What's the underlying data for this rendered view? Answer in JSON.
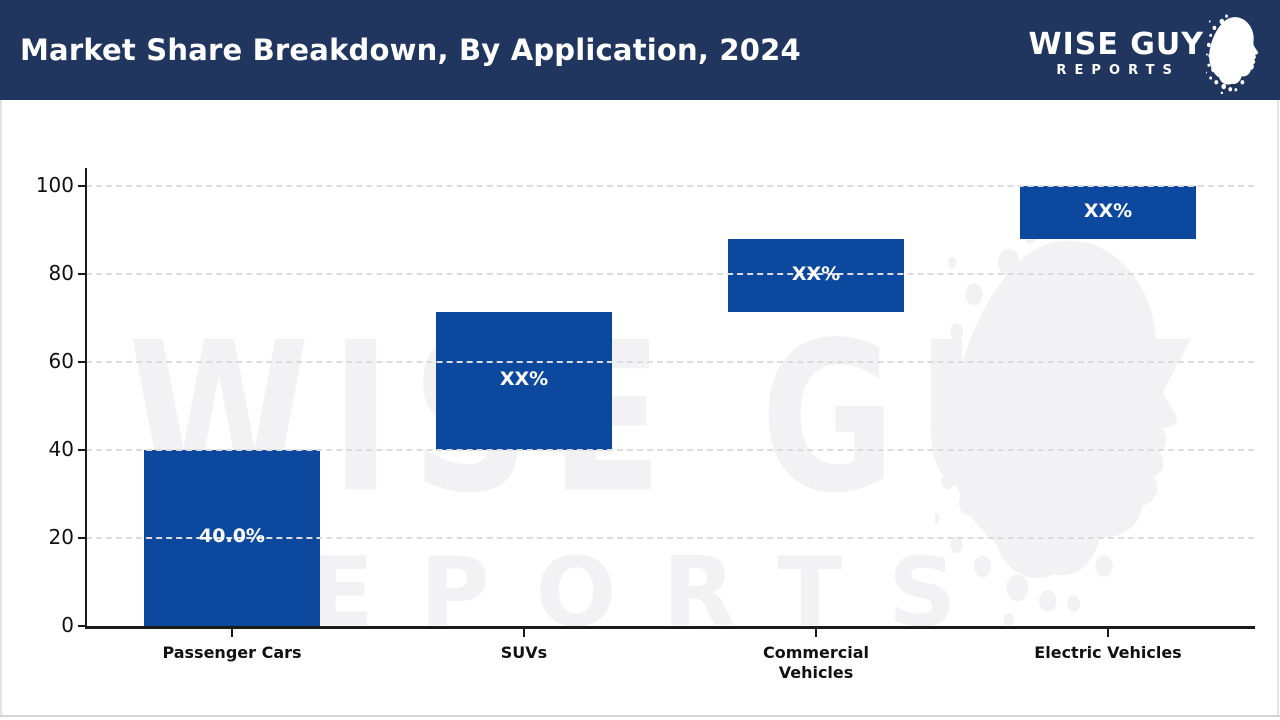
{
  "header": {
    "title": "Market Share Breakdown, By Application, 2024",
    "bg_color": "#21365f",
    "brand": {
      "line1": "WISE GUY",
      "line2": "REPORTS"
    }
  },
  "watermark": {
    "line1": "WISE GUY",
    "line2": "REPORTS",
    "color": "#f2f2f5"
  },
  "chart_data": {
    "type": "bar",
    "subtype": "waterfall",
    "title": "Market Share Breakdown, By Application, 2024",
    "categories": [
      "Passenger Cars",
      "SUVs",
      "Commercial Vehicles",
      "Electric Vehicles"
    ],
    "categories_display": [
      "Passenger Cars",
      "SUVs",
      "Commercial\nVehicles",
      "Electric Vehicles"
    ],
    "segments": [
      {
        "category": "Passenger Cars",
        "start": 0,
        "end": 40,
        "label": "40.0%"
      },
      {
        "category": "SUVs",
        "start": 40,
        "end": 71.3,
        "label": "XX%"
      },
      {
        "category": "Commercial Vehicles",
        "start": 71.3,
        "end": 87.9,
        "label": "XX%"
      },
      {
        "category": "Electric Vehicles",
        "start": 87.9,
        "end": 100,
        "label": "XX%"
      }
    ],
    "y_ticks": [
      0,
      20,
      40,
      60,
      80,
      100
    ],
    "ylim": [
      0,
      104
    ],
    "xlabel": "",
    "ylabel": "",
    "grid": "horizontal-dashed-over-bars",
    "bar_color": "#0d489f",
    "label_color": "#ffffff",
    "axis_color": "#1a1a1a"
  }
}
